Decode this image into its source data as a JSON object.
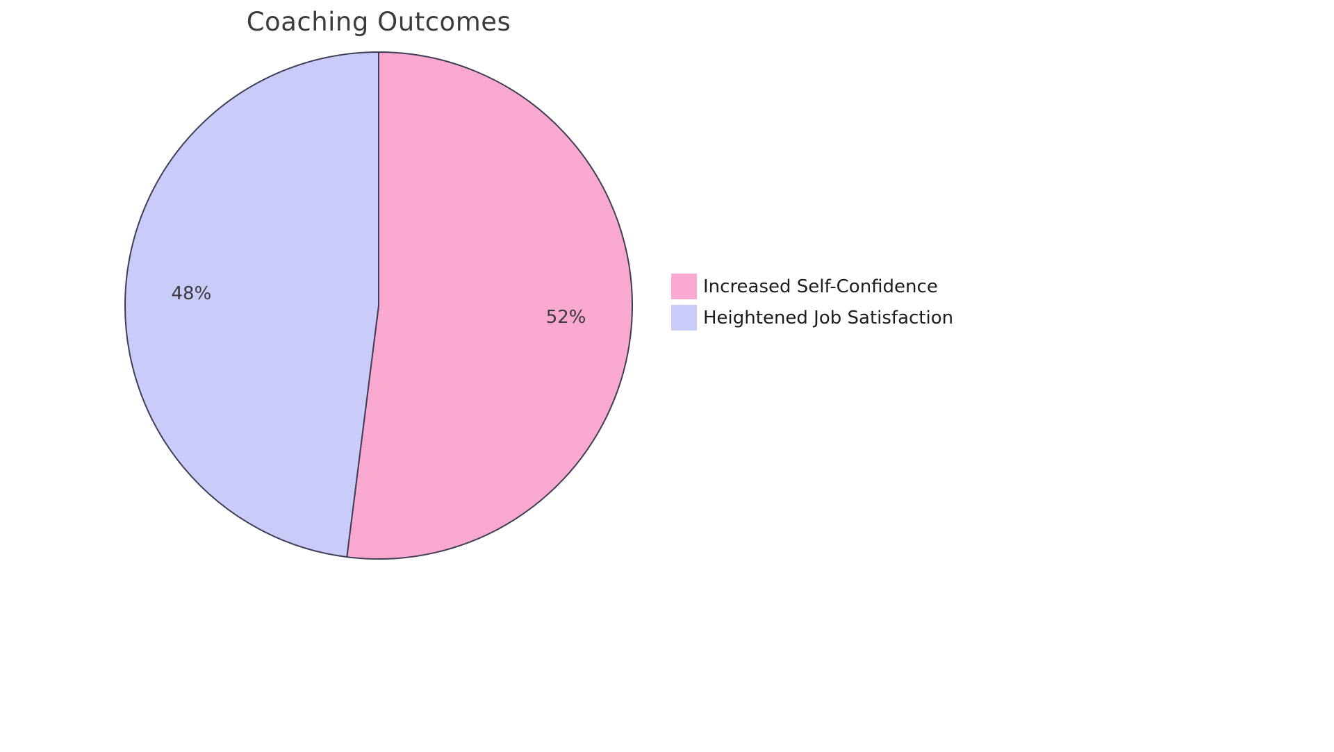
{
  "chart_data": {
    "type": "pie",
    "title": "Coaching Outcomes",
    "slices": [
      {
        "label": "Increased Self-Confidence",
        "value": 52,
        "display": "52%",
        "color": "#F9A8D0"
      },
      {
        "label": "Heightened Job Satisfaction",
        "value": 48,
        "display": "48%",
        "color": "#C9CCF8"
      }
    ],
    "start_angle_deg": 0,
    "direction": "clockwise",
    "stroke_color": "#3D3D55",
    "stroke_width": 2,
    "legend_position": "right",
    "background": "#FFFFFF"
  }
}
